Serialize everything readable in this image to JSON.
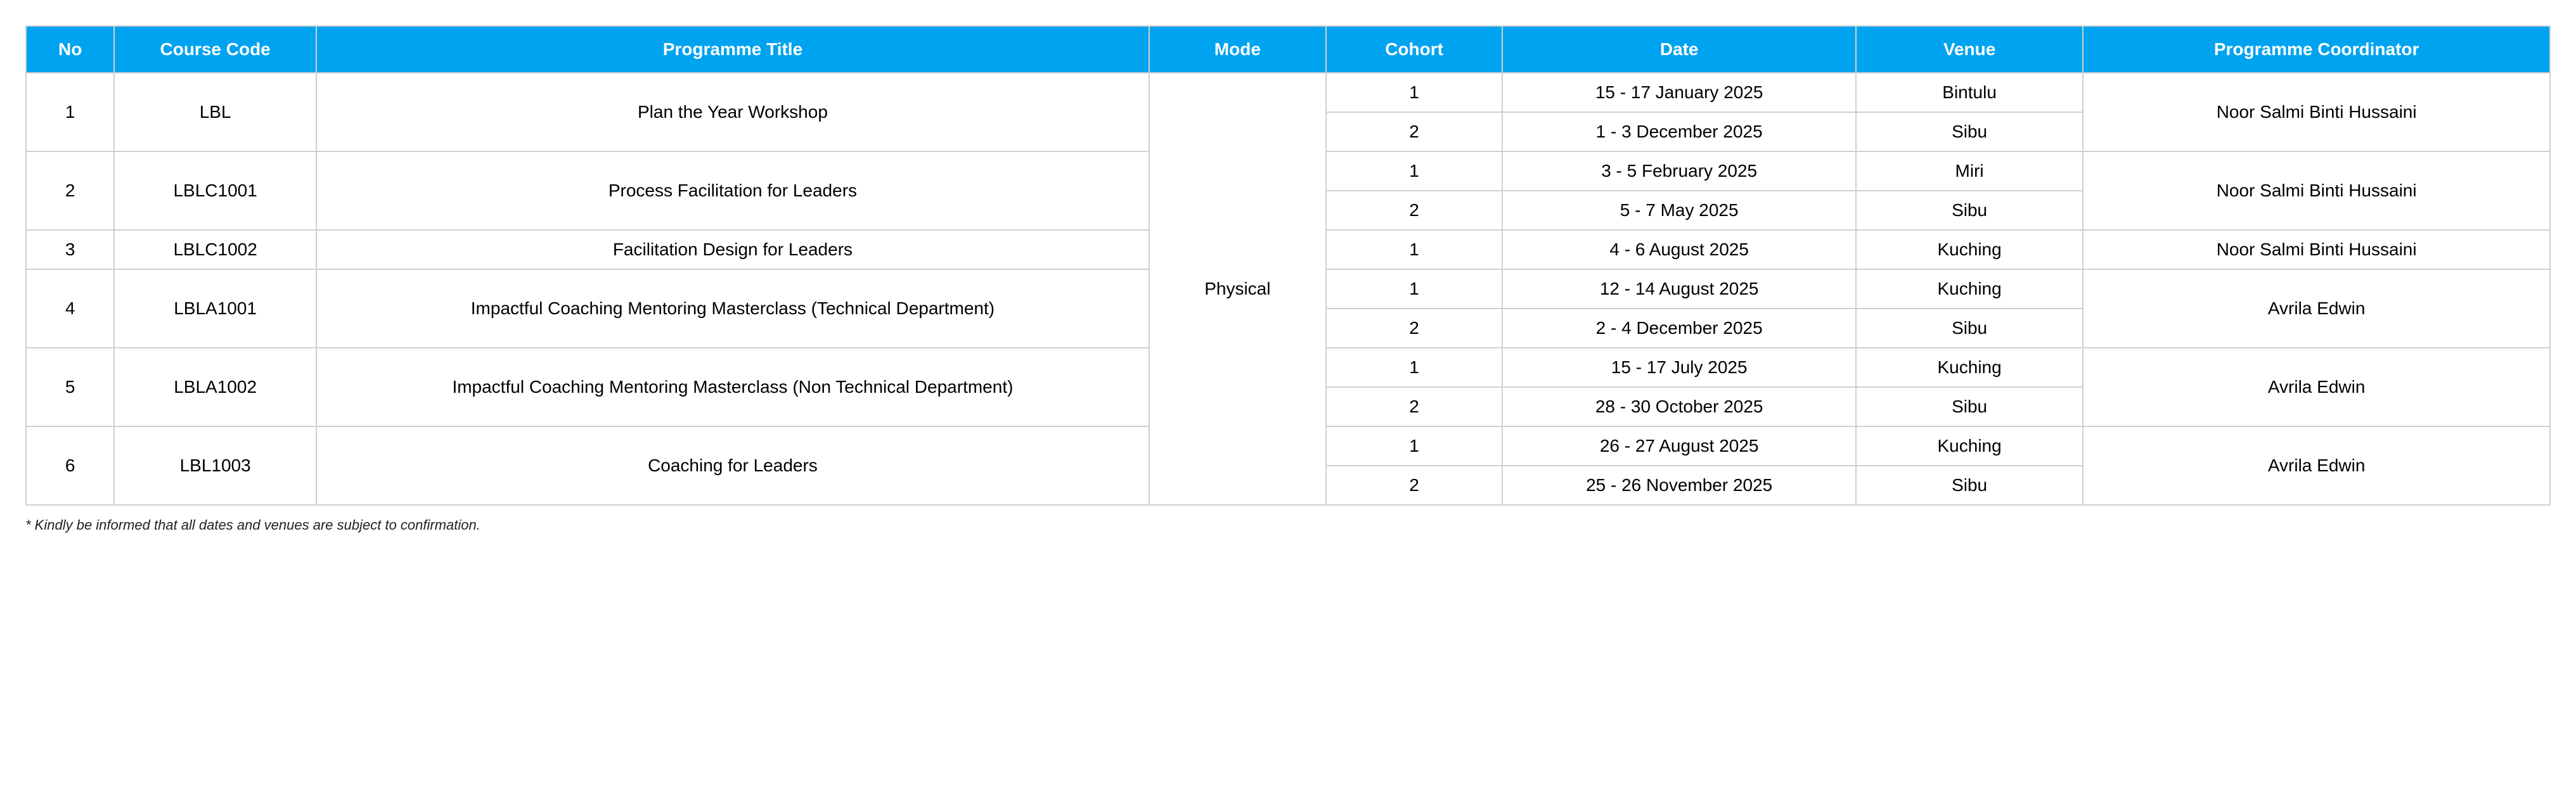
{
  "table": {
    "type": "table",
    "header_bg": "#00a3ef",
    "header_text_color": "#ffffff",
    "border_color": "#d0d0d0",
    "cell_bg": "#ffffff",
    "cell_text_color": "#000000",
    "font_family": "Segoe UI, Arial, sans-serif",
    "header_fontsize_pt": 14,
    "cell_fontsize_pt": 14,
    "columns": [
      {
        "key": "no",
        "label": "No",
        "width_pct": 3.5
      },
      {
        "key": "course_code",
        "label": "Course Code",
        "width_pct": 8
      },
      {
        "key": "title",
        "label": "Programme Title",
        "width_pct": 33
      },
      {
        "key": "mode",
        "label": "Mode",
        "width_pct": 7
      },
      {
        "key": "cohort",
        "label": "Cohort",
        "width_pct": 7
      },
      {
        "key": "date",
        "label": "Date",
        "width_pct": 14
      },
      {
        "key": "venue",
        "label": "Venue",
        "width_pct": 9
      },
      {
        "key": "coordinator",
        "label": "Programme Coordinator",
        "width_pct": 18.5
      }
    ],
    "mode_label": "Physical",
    "rows": [
      {
        "no": "1",
        "course_code": "LBL",
        "title": "Plan the Year Workshop",
        "coordinator": "Noor Salmi Binti Hussaini",
        "cohorts": [
          {
            "cohort": "1",
            "date": "15 - 17 January 2025",
            "venue": "Bintulu"
          },
          {
            "cohort": "2",
            "date": "1 - 3 December 2025",
            "venue": "Sibu"
          }
        ]
      },
      {
        "no": "2",
        "course_code": "LBLC1001",
        "title": "Process Facilitation for Leaders",
        "coordinator": "Noor Salmi Binti Hussaini",
        "cohorts": [
          {
            "cohort": "1",
            "date": "3 - 5 February 2025",
            "venue": "Miri"
          },
          {
            "cohort": "2",
            "date": "5 - 7 May 2025",
            "venue": "Sibu"
          }
        ]
      },
      {
        "no": "3",
        "course_code": "LBLC1002",
        "title": "Facilitation Design for Leaders",
        "coordinator": "Noor Salmi Binti Hussaini",
        "cohorts": [
          {
            "cohort": "1",
            "date": "4 - 6 August 2025",
            "venue": "Kuching"
          }
        ]
      },
      {
        "no": "4",
        "course_code": "LBLA1001",
        "title": "Impactful Coaching Mentoring Masterclass (Technical Department)",
        "coordinator": "Avrila Edwin",
        "cohorts": [
          {
            "cohort": "1",
            "date": "12 - 14 August 2025",
            "venue": "Kuching"
          },
          {
            "cohort": "2",
            "date": "2 - 4 December 2025",
            "venue": "Sibu"
          }
        ]
      },
      {
        "no": "5",
        "course_code": "LBLA1002",
        "title": "Impactful Coaching Mentoring Masterclass (Non Technical Department)",
        "coordinator": "Avrila Edwin",
        "cohorts": [
          {
            "cohort": "1",
            "date": "15 - 17 July 2025",
            "venue": "Kuching"
          },
          {
            "cohort": "2",
            "date": "28 - 30 October 2025",
            "venue": "Sibu"
          }
        ]
      },
      {
        "no": "6",
        "course_code": "LBL1003",
        "title": "Coaching for Leaders",
        "coordinator": "Avrila Edwin",
        "cohorts": [
          {
            "cohort": "1",
            "date": "26 - 27 August 2025",
            "venue": "Kuching"
          },
          {
            "cohort": "2",
            "date": "25 - 26 November 2025",
            "venue": "Sibu"
          }
        ]
      }
    ]
  },
  "footnote": "* Kindly be informed that all dates and venues are subject to confirmation."
}
